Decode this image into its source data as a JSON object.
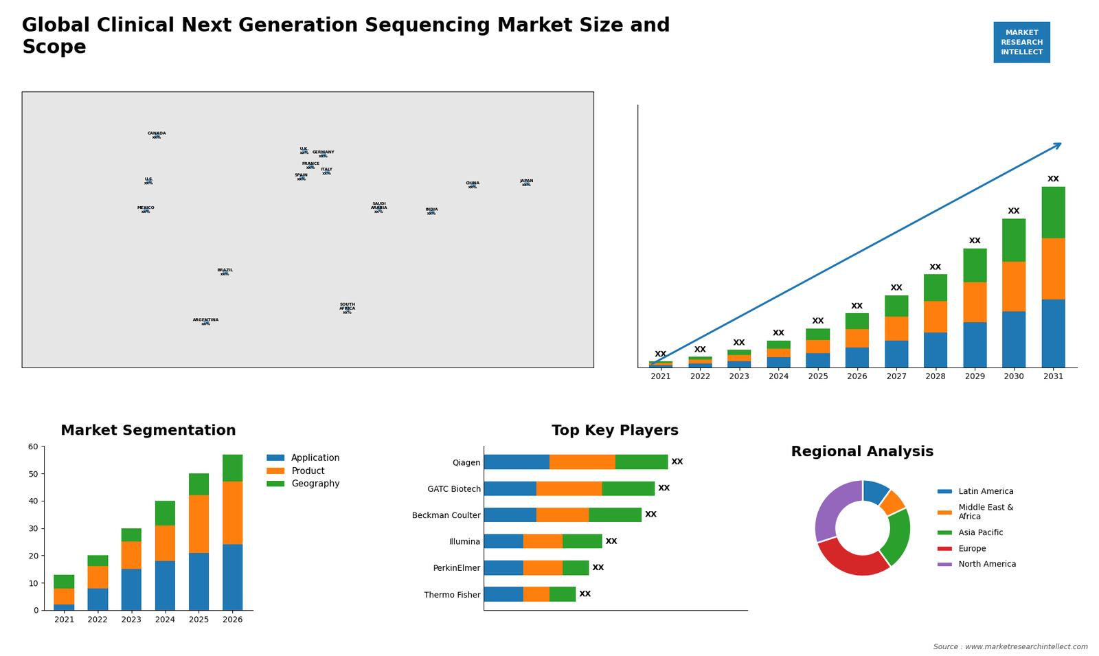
{
  "title": "Global Clinical Next Generation Sequencing Market Size and\nScope",
  "annotations": [
    "MARKET\nRESEARCH\nINTELLECT",
    "Source : www.marketresearchintellect.com"
  ],
  "chart_data": [
    {
      "type": "map",
      "xlim": [
        -180,
        180
      ],
      "ylim": [
        -60,
        85
      ],
      "tick_labels": false,
      "annotations": [
        {
          "text": "U.S.\nxx%",
          "x": -100,
          "y": 38
        },
        {
          "text": "CANADA\nxx%",
          "x": -95,
          "y": 62
        },
        {
          "text": "MEXICO\nxx%",
          "x": -102,
          "y": 23
        },
        {
          "text": "BRAZIL\nxx%",
          "x": -52,
          "y": -10
        },
        {
          "text": "ARGENTINA\nxx%",
          "x": -64,
          "y": -36
        },
        {
          "text": "U.K.\nxx%",
          "x": -2,
          "y": 54
        },
        {
          "text": "FRANCE\nxx%",
          "x": 2,
          "y": 46
        },
        {
          "text": "GERMANY\nxx%",
          "x": 10,
          "y": 52
        },
        {
          "text": "SPAIN\nxx%",
          "x": -4,
          "y": 40
        },
        {
          "text": "ITALY\nxx%",
          "x": 12,
          "y": 43
        },
        {
          "text": "SAUDI\nARABIA\nxx%",
          "x": 45,
          "y": 24
        },
        {
          "text": "SOUTH\nAFRICA\nxx%",
          "x": 25,
          "y": -29
        },
        {
          "text": "CHINA\nxx%",
          "x": 104,
          "y": 36
        },
        {
          "text": "INDIA\nxx%",
          "x": 78,
          "y": 22
        },
        {
          "text": "JAPAN\nxx%",
          "x": 138,
          "y": 37
        }
      ]
    },
    {
      "type": "bar",
      "stacked": true,
      "data_labels": true,
      "tick_labels": "x",
      "categories": [
        "2021",
        "2022",
        "2023",
        "2024",
        "2025",
        "2026",
        "2027",
        "2028",
        "2029",
        "2030",
        "2031"
      ],
      "series": [
        {
          "values": [
            1.2,
            2.0,
            3.2,
            5.0,
            7.2,
            10.0,
            13.5,
            17.5,
            22.5,
            28.0,
            34.0
          ]
        },
        {
          "values": [
            1.0,
            1.8,
            3.0,
            4.5,
            6.5,
            9.0,
            12.0,
            15.5,
            20.0,
            25.0,
            30.5
          ]
        },
        {
          "values": [
            0.8,
            1.5,
            2.5,
            4.0,
            5.8,
            8.0,
            10.5,
            13.5,
            17.0,
            21.5,
            26.0
          ]
        }
      ],
      "value_labels": [
        "XX",
        "XX",
        "XX",
        "XX",
        "XX",
        "XX",
        "XX",
        "XX",
        "XX",
        "XX",
        "XX"
      ],
      "ylim": [
        0,
        131.225
      ]
    },
    {
      "type": "bar",
      "title": "Market Segmentation",
      "stacked": true,
      "legend": "upper left",
      "categories": [
        "2021",
        "2022",
        "2023",
        "2024",
        "2025",
        "2026"
      ],
      "series": [
        {
          "name": "Application",
          "values": [
            2,
            8,
            15,
            18,
            21,
            24
          ]
        },
        {
          "name": "Product",
          "values": [
            6,
            8,
            10,
            13,
            21,
            23
          ]
        },
        {
          "name": "Geography",
          "values": [
            5,
            4,
            5,
            9,
            8,
            10
          ]
        }
      ],
      "ylim": [
        0,
        60
      ],
      "yticks": [
        0,
        10,
        20,
        30,
        40,
        50,
        60
      ]
    },
    {
      "type": "bar",
      "title": "Top Key Players",
      "orientation": "horizontal",
      "stacked": true,
      "data_labels": true,
      "tick_labels": "y",
      "categories": [
        "Qiagen",
        "GATC Biotech",
        "Beckman Coulter",
        "Illumina",
        "PerkinElmer",
        "Thermo Fisher"
      ],
      "series": [
        {
          "values": [
            2.5,
            2.0,
            2.0,
            1.5,
            1.5,
            1.5
          ]
        },
        {
          "values": [
            2.5,
            2.5,
            2.0,
            1.5,
            1.5,
            1.0
          ]
        },
        {
          "values": [
            2.0,
            2.0,
            2.0,
            1.5,
            1.0,
            1.0
          ]
        }
      ],
      "value_labels": [
        "XX",
        "XX",
        "XX",
        "XX",
        "XX",
        "XX"
      ],
      "xlim": [
        0,
        10
      ]
    },
    {
      "type": "donut",
      "title": "Regional Analysis",
      "legend": "center left",
      "categories": [
        "Latin America",
        "Middle East &\nAfrica",
        "Asia Pacific",
        "Europe",
        "North America"
      ],
      "values": [
        10,
        8,
        22,
        30,
        30
      ]
    }
  ]
}
